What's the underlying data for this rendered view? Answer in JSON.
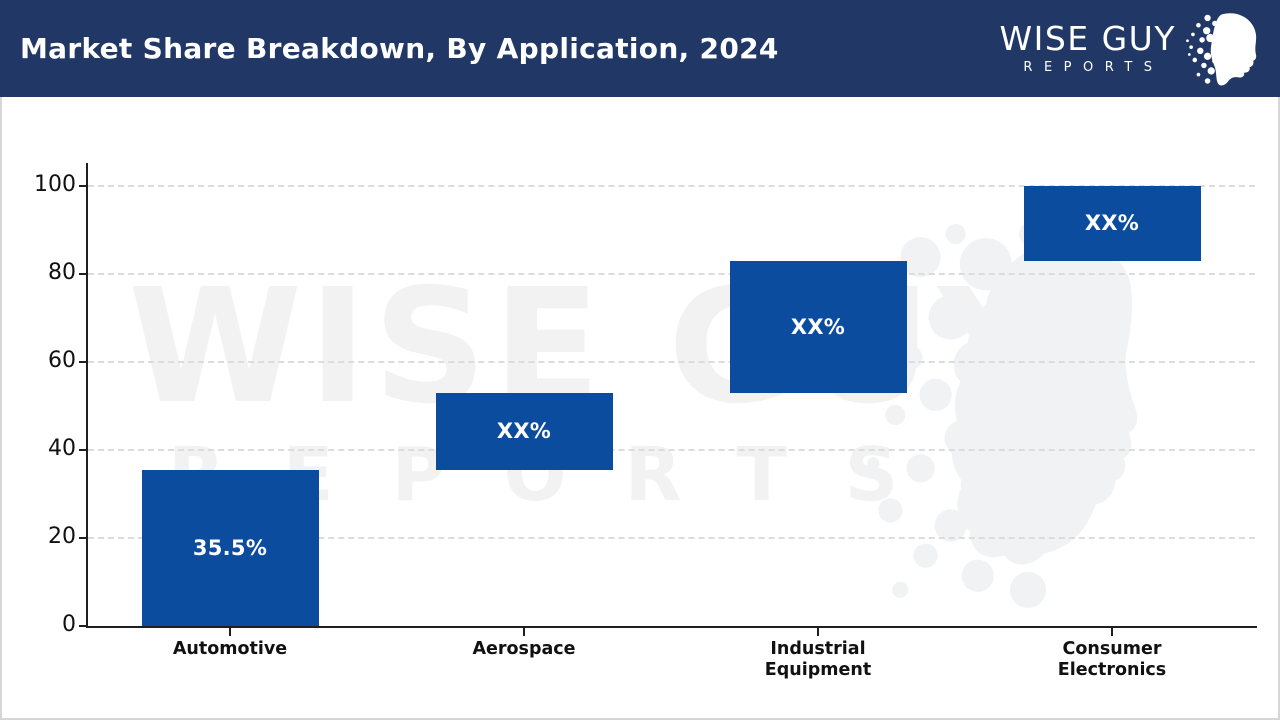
{
  "page": {
    "background": "#ffffff",
    "border_color": "#d6d6d6"
  },
  "header": {
    "background": "#213867",
    "title": "Market Share Breakdown, By Application, 2024",
    "logo": {
      "name": "WISE GUY REPORTS",
      "line1": "WISE GUY",
      "line2": "REPORTS"
    }
  },
  "watermark": {
    "line1": "WISE GUY",
    "line2": "REPORTS"
  },
  "chart_data": {
    "type": "bar",
    "subtype": "waterfall",
    "title": "Market Share Breakdown, By Application, 2024",
    "categories": [
      "Automotive",
      "Aerospace",
      "Industrial Equipment",
      "Consumer Electronics"
    ],
    "category_label_lines": [
      [
        "Automotive"
      ],
      [
        "Aerospace"
      ],
      [
        "Industrial",
        "Equipment"
      ],
      [
        "Consumer",
        "Electronics"
      ]
    ],
    "segments": [
      {
        "category": "Automotive",
        "start": 0,
        "end": 35.5,
        "label": "35.5%"
      },
      {
        "category": "Aerospace",
        "start": 35.5,
        "end": 53,
        "label": "XX%"
      },
      {
        "category": "Industrial Equipment",
        "start": 53,
        "end": 83,
        "label": "XX%"
      },
      {
        "category": "Consumer Electronics",
        "start": 83,
        "end": 100,
        "label": "XX%"
      }
    ],
    "yticks": [
      0,
      20,
      40,
      60,
      80,
      100
    ],
    "ylim": [
      0,
      105
    ],
    "xlabel": "",
    "ylabel": "",
    "legend": null,
    "grid": "horizontal-dashed",
    "bar_color": "#0b4c9f",
    "value_label_color": "#ffffff",
    "axis_color": "#1f1f1f",
    "gridline_color": "#dcdcdc",
    "tick_label_color": "#111111"
  }
}
